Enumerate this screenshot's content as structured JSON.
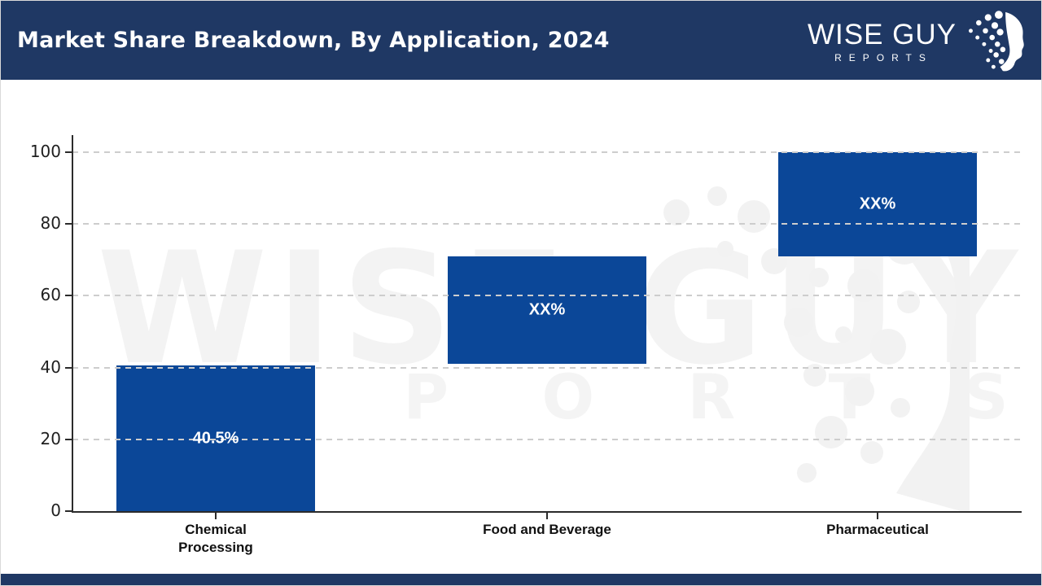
{
  "header": {
    "title": "Market Share Breakdown, By Application, 2024",
    "logo": {
      "line1": "WISE GUY",
      "line2": "REPORTS"
    }
  },
  "watermark": {
    "line1": "WISE GUY",
    "line2": "R E P O R T S"
  },
  "chart_data": {
    "type": "bar",
    "subtype": "floating-segment-bars",
    "title": "Market Share Breakdown, By Application, 2024",
    "categories": [
      "Chemical\nProcessing",
      "Food and Beverage",
      "Pharmaceutical"
    ],
    "bars": [
      {
        "category": "Chemical Processing",
        "from": 0,
        "to": 40.5,
        "label": "40.5%"
      },
      {
        "category": "Food and Beverage",
        "from": 41,
        "to": 71,
        "label": "XX%"
      },
      {
        "category": "Pharmaceutical",
        "from": 71,
        "to": 100,
        "label": "XX%"
      }
    ],
    "yticks": [
      0,
      20,
      40,
      60,
      80,
      100
    ],
    "ylim": [
      0,
      104.5
    ],
    "xlabel": "",
    "ylabel": "",
    "grid": "horizontal-dashed",
    "legend": false,
    "bar_color": "#0b4798",
    "bar_label_color": "#ffffff",
    "grid_color": "#cdcdcd",
    "axis_color": "#2b2b2b"
  },
  "colors": {
    "header_bg": "#1f3864",
    "footer_bg": "#1f3864",
    "watermark": "#f3f3f3",
    "border": "#d9d9d9"
  }
}
